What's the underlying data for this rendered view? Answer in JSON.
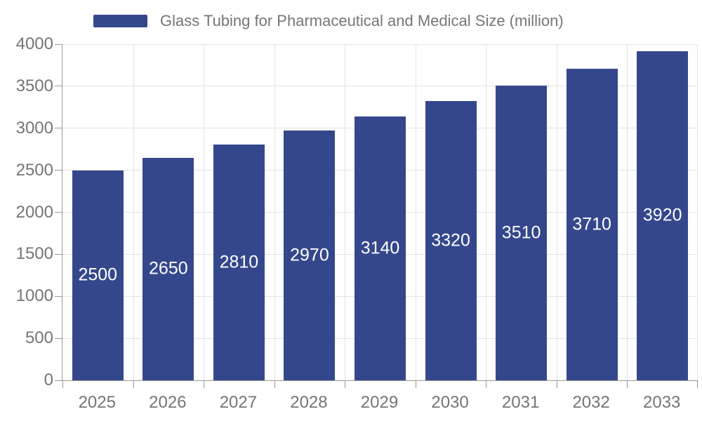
{
  "legend": {
    "label": "Glass Tubing for Pharmaceutical and Medical Size (million)"
  },
  "chart_data": {
    "type": "bar",
    "title": "Glass Tubing for Pharmaceutical and Medical Size (million)",
    "series_name": "Glass Tubing for Pharmaceutical and Medical Size (million)",
    "categories": [
      "2025",
      "2026",
      "2027",
      "2028",
      "2029",
      "2030",
      "2031",
      "2032",
      "2033"
    ],
    "values": [
      2500,
      2650,
      2810,
      2970,
      3140,
      3320,
      3510,
      3710,
      3920
    ],
    "xlabel": "",
    "ylabel": "",
    "ylim": [
      0,
      4000
    ],
    "yticks": [
      0,
      500,
      1000,
      1500,
      2000,
      2500,
      3000,
      3500,
      4000
    ],
    "grid": true,
    "legend_position": "top",
    "bar_labels_inside": true,
    "colors": {
      "bar": "#35478C",
      "bar_label": "#FFFFFF",
      "axis_text": "#757575",
      "legend_text": "#767676",
      "gridline": "#E3E3E3",
      "axis_line": "#999999",
      "background": "#FFFFFF"
    }
  }
}
